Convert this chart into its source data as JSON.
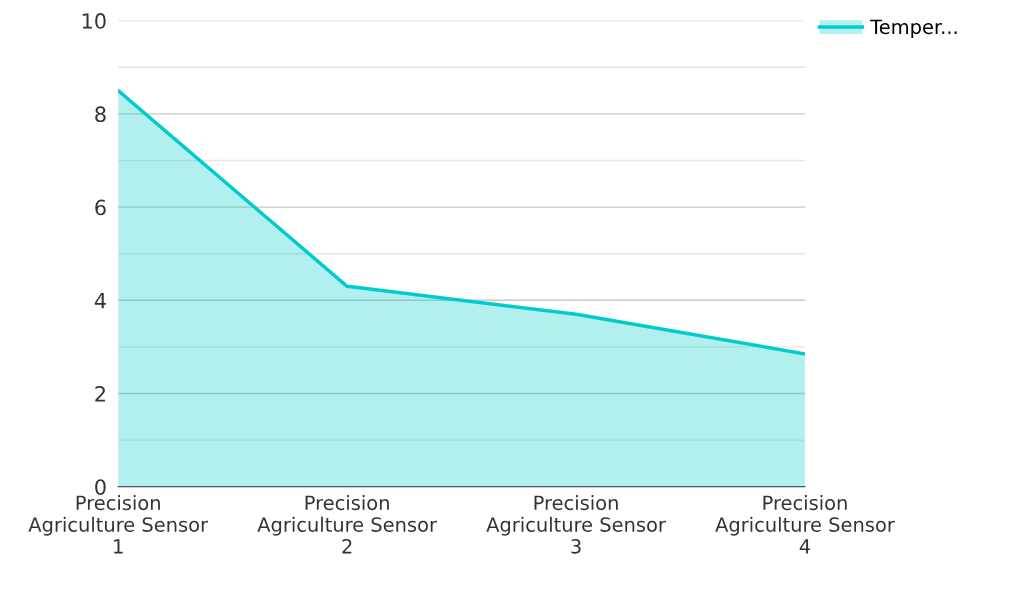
{
  "chart_data": {
    "type": "area",
    "categories": [
      "Precision\nAgriculture Sensor\n1",
      "Precision\nAgriculture Sensor\n2",
      "Precision\nAgriculture Sensor\n3",
      "Precision\nAgriculture Sensor\n4"
    ],
    "series": [
      {
        "name": "Temper...",
        "color": "#00cccc",
        "values": [
          8.5,
          4.3,
          3.7,
          2.85
        ]
      }
    ],
    "ylim": [
      0,
      10
    ],
    "yticks": [
      0,
      {
        "value": 1,
        "label": null
      },
      2,
      {
        "value": 3,
        "label": null
      },
      4,
      {
        "value": 5,
        "label": null
      },
      6,
      {
        "value": 7,
        "label": null
      },
      8,
      {
        "value": 9,
        "label": null
      },
      10
    ],
    "grid": "y",
    "legend": "top right",
    "marker": "none"
  }
}
